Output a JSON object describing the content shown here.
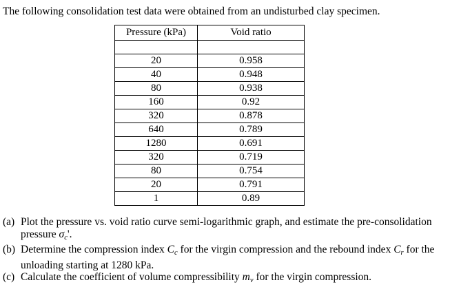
{
  "title": "The following consolidation test data were obtained from an undisturbed clay specimen.",
  "table": {
    "columns": [
      "Pressure (kPa)",
      "Void ratio"
    ],
    "rows": [
      [
        "20",
        "0.958"
      ],
      [
        "40",
        "0.948"
      ],
      [
        "80",
        "0.938"
      ],
      [
        "160",
        "0.92"
      ],
      [
        "320",
        "0.878"
      ],
      [
        "640",
        "0.789"
      ],
      [
        "1280",
        "0.691"
      ],
      [
        "320",
        "0.719"
      ],
      [
        "80",
        "0.754"
      ],
      [
        "20",
        "0.791"
      ],
      [
        "1",
        "0.89"
      ]
    ]
  },
  "questions": [
    {
      "label": "(a)",
      "segments": [
        {
          "text": "Plot the pressure vs. void ratio curve semi-logarithmic graph, and estimate the pre-consolidation pressure "
        },
        {
          "text": "σ",
          "style": "italic"
        },
        {
          "text": "c",
          "style": "italic-sub"
        },
        {
          "text": "'."
        }
      ]
    },
    {
      "label": "(b)",
      "segments": [
        {
          "text": "Determine the compression index "
        },
        {
          "text": "C",
          "style": "italic"
        },
        {
          "text": "c",
          "style": "italic-sub"
        },
        {
          "text": " for the virgin compression and the rebound index "
        },
        {
          "text": "C",
          "style": "italic"
        },
        {
          "text": "r",
          "style": "italic-sub"
        },
        {
          "text": " for the unloading starting at 1280 kPa."
        }
      ]
    },
    {
      "label": "(c)",
      "segments": [
        {
          "text": "Calculate the coefficient of volume compressibility "
        },
        {
          "text": "m",
          "style": "italic"
        },
        {
          "text": "v",
          "style": "italic-sub"
        },
        {
          "text": " for the virgin compression."
        }
      ]
    }
  ]
}
